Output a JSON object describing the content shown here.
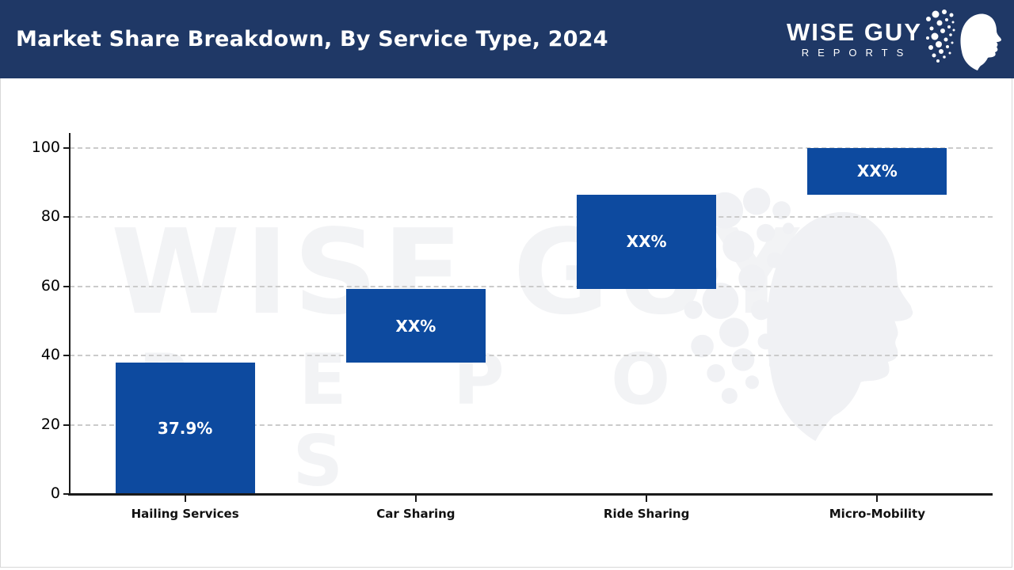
{
  "header": {
    "title": "Market Share Breakdown, By Service Type, 2024",
    "logo": {
      "line1": "WISE GUY",
      "line2": "REPORTS"
    }
  },
  "watermark": {
    "line1": "WISE GUY",
    "line2": "R E P O R T S"
  },
  "colors": {
    "header_bg": "#1f3866",
    "bar": "#0d4a9f",
    "bar_label": "#ffffff",
    "grid": "#cbcbcb",
    "axis": "#1a1a1a",
    "watermark": "#f2f3f5"
  },
  "chart_data": {
    "type": "bar",
    "subtype": "waterfall",
    "title": "Market Share Breakdown, By Service Type, 2024",
    "categories": [
      "Hailing Services",
      "Car Sharing",
      "Ride Sharing",
      "Micro-Mobility"
    ],
    "segments": [
      {
        "category": "Hailing Services",
        "start": 0,
        "end": 37.9,
        "label": "37.9%"
      },
      {
        "category": "Car Sharing",
        "start": 37.9,
        "end": 59.3,
        "label": "XX%"
      },
      {
        "category": "Ride Sharing",
        "start": 59.3,
        "end": 86.6,
        "label": "XX%"
      },
      {
        "category": "Micro-Mobility",
        "start": 86.6,
        "end": 100,
        "label": "XX%"
      }
    ],
    "yticks": [
      0,
      20,
      40,
      60,
      80,
      100
    ],
    "ylim": [
      0,
      104
    ],
    "xlabel": "",
    "ylabel": "",
    "grid": "horizontal-dashed",
    "legend": "none"
  }
}
